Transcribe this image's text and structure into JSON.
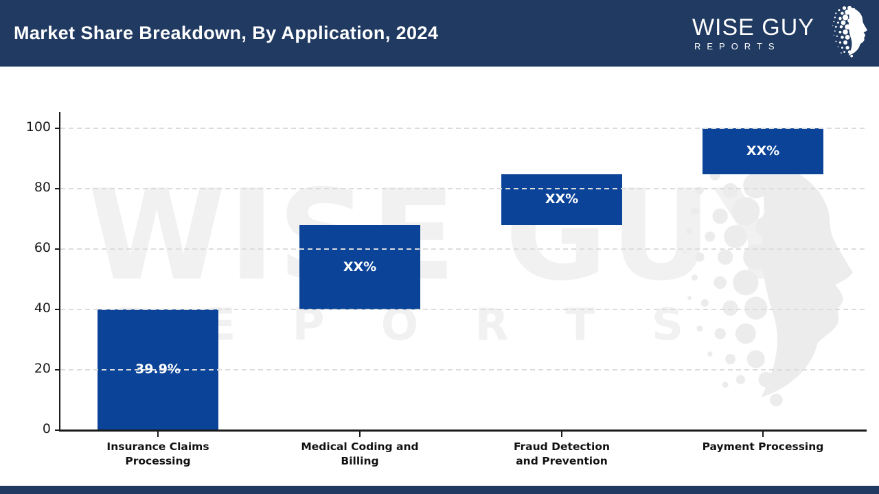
{
  "header": {
    "title": "Market Share Breakdown, By Application, 2024",
    "bg_color": "#203a61",
    "logo": {
      "line1": "WISE GUY",
      "line2": "REPORTS",
      "icon": "dotted-head-profile-icon"
    }
  },
  "watermark": {
    "line1": "WISE GUY",
    "line2": "R E P O R T S",
    "icon": "dotted-head-profile-watermark",
    "color": "#f1f1f1"
  },
  "footer": {
    "bg_color": "#203a61"
  },
  "chart_data": {
    "type": "bar",
    "subtype": "waterfall",
    "title": "Market Share Breakdown, By Application, 2024",
    "xlabel": "",
    "ylabel": "",
    "categories": [
      "Insurance Claims\nProcessing",
      "Medical Coding and\nBilling",
      "Fraud Detection\nand Prevention",
      "Payment Processing"
    ],
    "segments": [
      [
        0,
        39.9
      ],
      [
        40,
        68
      ],
      [
        68,
        84.8
      ],
      [
        84.8,
        100
      ]
    ],
    "values": [
      39.9,
      28,
      16.8,
      15.2
    ],
    "labels": [
      "39.9%",
      "XX%",
      "XX%",
      "XX%"
    ],
    "yticks": [
      0,
      20,
      40,
      60,
      80,
      100
    ],
    "ylim": [
      0,
      100
    ],
    "grid": true,
    "grid_style": "dashed",
    "grid_color": "#dcdcdc",
    "bar_color": "#0a4398",
    "label_color": "#ffffff",
    "axis_color": "#1a1a1a",
    "legend": "none"
  }
}
